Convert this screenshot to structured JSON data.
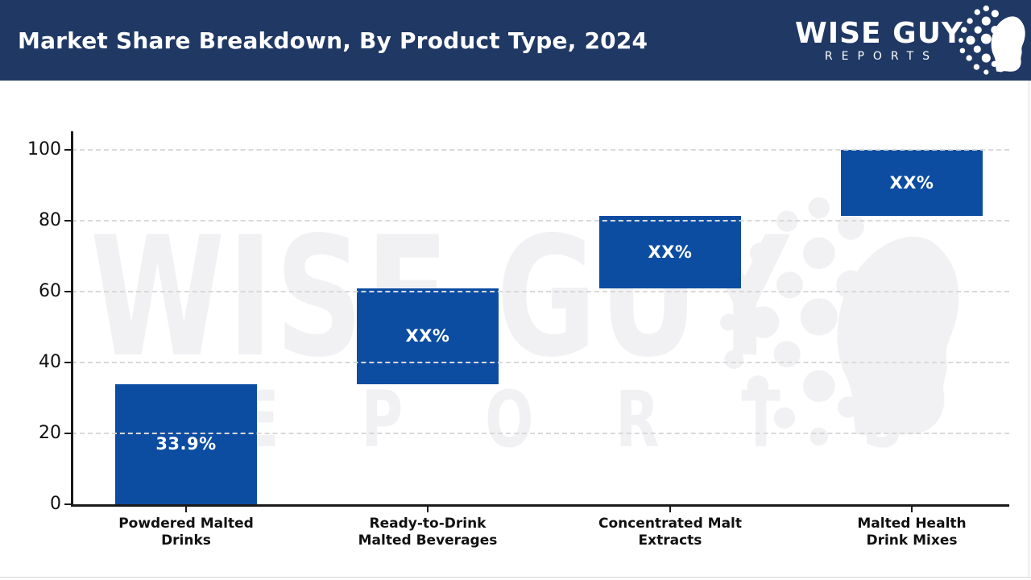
{
  "header": {
    "title": "Market Share Breakdown, By Product Type, 2024",
    "logo": {
      "wordmark": "WISE GUY",
      "subtext": "REPORTS"
    }
  },
  "watermark": {
    "line1": "WISE GUY",
    "line2": "R E P O R T S"
  },
  "chart_data": {
    "type": "bar",
    "subtype": "floating-segment-waterfall",
    "title": "Market Share Breakdown, By Product Type, 2024",
    "xlabel": "",
    "ylabel": "",
    "ylim": [
      0,
      100
    ],
    "yticks": [
      0,
      20,
      40,
      60,
      80,
      100
    ],
    "grid": {
      "axis": "y",
      "style": "dashed",
      "drawn_above_bars": true
    },
    "legend": null,
    "categories": [
      "Powdered Malted\nDrinks",
      "Ready-to-Drink\nMalted Beverages",
      "Concentrated Malt\nExtracts",
      "Malted Health\nDrink Mixes"
    ],
    "segments": [
      {
        "category": "Powdered Malted Drinks",
        "label": "33.9%",
        "start": 0,
        "end": 33.9
      },
      {
        "category": "Ready-to-Drink Malted Beverages",
        "label": "XX%",
        "start": 33.9,
        "end": 61
      },
      {
        "category": "Concentrated Malt Extracts",
        "label": "XX%",
        "start": 61,
        "end": 81.4
      },
      {
        "category": "Malted Health Drink Mixes",
        "label": "XX%",
        "start": 81.4,
        "end": 100
      }
    ],
    "colors": {
      "bar": "#0c4da2",
      "bar_label": "#ffffff",
      "grid": "#d9d9d9",
      "axis": "#1a1a1a",
      "header_bg": "#1f3864",
      "watermark": "#f1f1f4"
    }
  }
}
